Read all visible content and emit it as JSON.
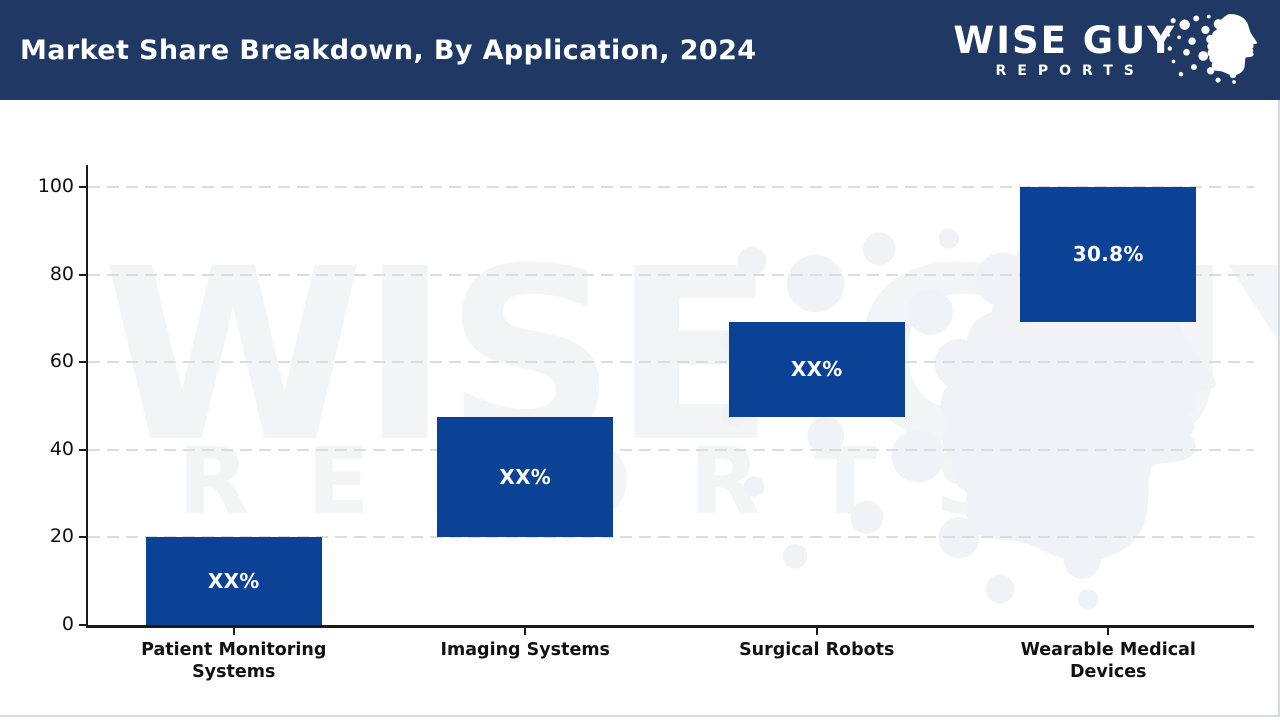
{
  "header": {
    "title": "Market Share Breakdown, By Application, 2024",
    "logo": {
      "line1": "WISE GUY",
      "line2": "REPORTS"
    }
  },
  "watermark": {
    "line1": "WISE GUY",
    "line2": "REPORTS"
  },
  "chart_data": {
    "type": "bar",
    "subtype": "waterfall-floating-bars",
    "title": "Market Share Breakdown, By Application, 2024",
    "xlabel": "",
    "ylabel": "",
    "ylim": [
      0,
      100
    ],
    "yticks": [
      0,
      20,
      40,
      60,
      80,
      100
    ],
    "grid": "horizontal-dashed",
    "bar_color": "#0b4295",
    "bar_label_color": "#ffffff",
    "categories": [
      "Patient Monitoring Systems",
      "Imaging Systems",
      "Surgical Robots",
      "Wearable Medical Devices"
    ],
    "category_label_lines": [
      [
        "Patient Monitoring",
        "Systems"
      ],
      [
        "Imaging Systems"
      ],
      [
        "Surgical Robots"
      ],
      [
        "Wearable Medical",
        "Devices"
      ]
    ],
    "series": [
      {
        "name": "Market Share",
        "segments": [
          {
            "category": "Patient Monitoring Systems",
            "start": 0,
            "end": 20,
            "label": "XX%"
          },
          {
            "category": "Imaging Systems",
            "start": 20,
            "end": 47.5,
            "label": "XX%"
          },
          {
            "category": "Surgical Robots",
            "start": 47.5,
            "end": 69.2,
            "label": "XX%"
          },
          {
            "category": "Wearable Medical Devices",
            "start": 69.2,
            "end": 100,
            "label": "30.8%"
          }
        ]
      }
    ]
  }
}
